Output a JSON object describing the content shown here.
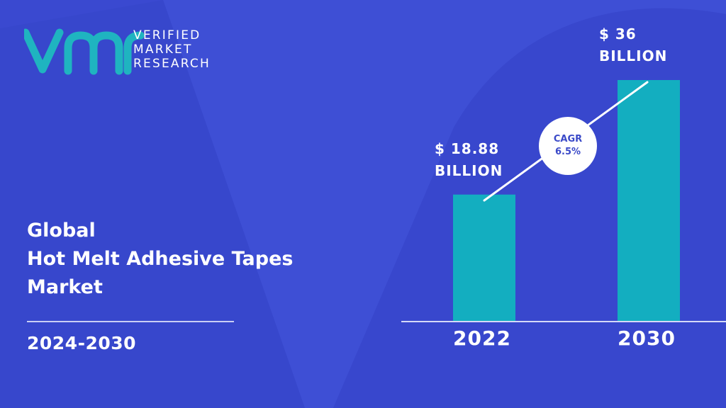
{
  "brand": {
    "line1": "VERIFIED",
    "line2": "MARKET",
    "line3": "RESEARCH",
    "logo_icon": "vmr-logo-icon",
    "colors": {
      "background": "#3a49d0",
      "bar": "#13aec0",
      "logo_teal": "#1fb4c0"
    }
  },
  "title": {
    "line1": "Global",
    "line2": "Hot Melt Adhesive Tapes",
    "line3": "Market"
  },
  "period": "2024-2030",
  "chart_data": {
    "type": "bar",
    "categories": [
      "2022",
      "2030"
    ],
    "values": [
      18.88,
      36
    ],
    "value_labels": [
      {
        "line1": "$ 18.88",
        "line2": "BILLION"
      },
      {
        "line1": "$ 36",
        "line2": "BILLION"
      }
    ],
    "annotation": {
      "line1": "CAGR",
      "line2": "6.5%"
    },
    "xlabel": "",
    "ylabel": "",
    "grid": false,
    "legend": "none"
  }
}
